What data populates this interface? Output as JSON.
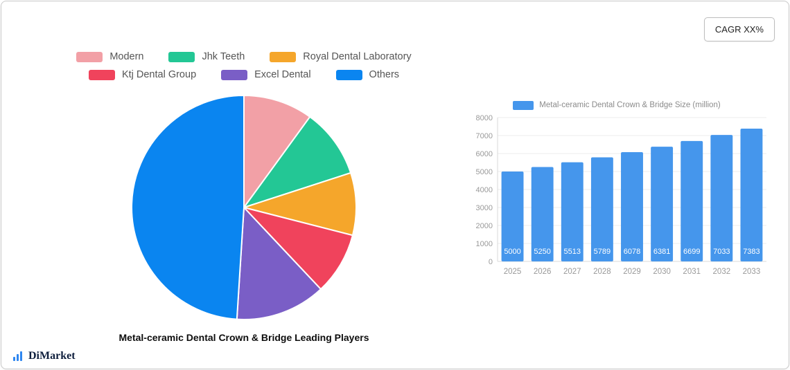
{
  "badge": {
    "label": "CAGR XX%"
  },
  "logo": {
    "text": "DiMarket",
    "icon": "bar-chart-logo-icon"
  },
  "chart_data": [
    {
      "type": "pie",
      "title": "Metal-ceramic Dental Crown & Bridge Leading Players",
      "legend_position": "top",
      "start_angle_deg": -90,
      "direction": "clockwise",
      "slices": [
        {
          "label": "Modern",
          "value": 10,
          "color": "#F2A0A6"
        },
        {
          "label": "Jhk Teeth",
          "value": 10,
          "color": "#23C795"
        },
        {
          "label": "Royal Dental Laboratory",
          "value": 9,
          "color": "#F5A62B"
        },
        {
          "label": "Ktj Dental Group",
          "value": 9,
          "color": "#F0435C"
        },
        {
          "label": "Excel Dental",
          "value": 13,
          "color": "#7A5EC6"
        },
        {
          "label": "Others",
          "value": 49,
          "color": "#0A85F0"
        }
      ]
    },
    {
      "type": "bar",
      "legend": "Metal-ceramic Dental Crown & Bridge Size (million)",
      "bar_color": "#4596EC",
      "categories": [
        "2025",
        "2026",
        "2027",
        "2028",
        "2029",
        "2030",
        "2031",
        "2032",
        "2033"
      ],
      "values": [
        5000,
        5250,
        5513,
        5789,
        6078,
        6381,
        6699,
        7033,
        7383
      ],
      "ylim": [
        0,
        8000
      ],
      "ytick_step": 1000,
      "grid": true,
      "value_labels": "inside-bottom",
      "xlabel": "",
      "ylabel": ""
    }
  ]
}
